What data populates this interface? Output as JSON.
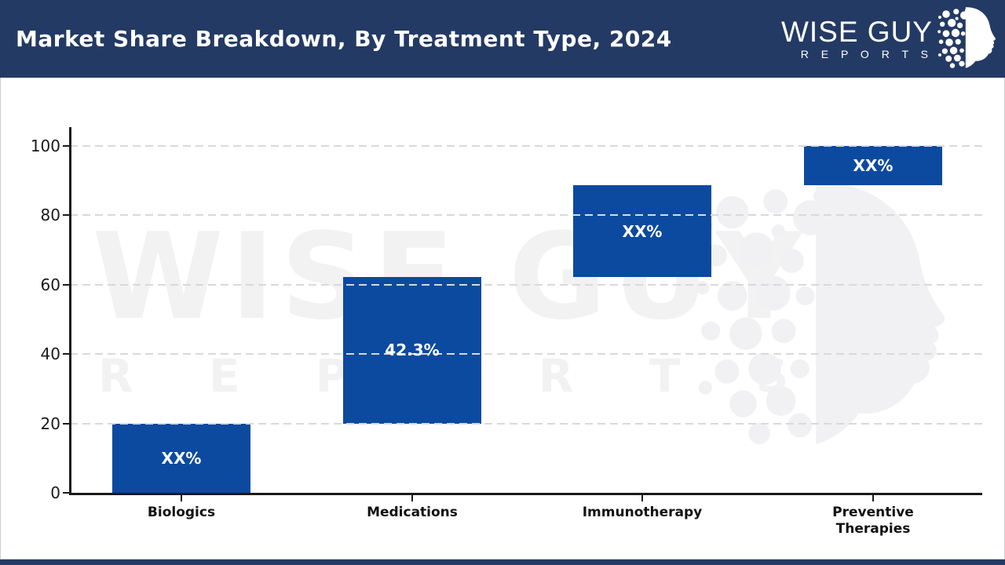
{
  "header": {
    "title": "Market Share Breakdown, By Treatment Type, 2024",
    "brand": {
      "line1": "WISE GUY",
      "line2": "R E P O R T S"
    }
  },
  "watermark": {
    "line1": "WISE GUY",
    "line2": "R E P O R T S"
  },
  "chart_data": {
    "type": "bar",
    "variant": "waterfall",
    "title": "Market Share Breakdown, By Treatment Type, 2024",
    "categories": [
      "Biologics",
      "Medications",
      "Immunotherapy",
      "Preventive Therapies"
    ],
    "segments": [
      {
        "category": "Biologics",
        "start": 0,
        "end": 20,
        "label": "XX%"
      },
      {
        "category": "Medications",
        "start": 20,
        "end": 62.3,
        "label": "42.3%"
      },
      {
        "category": "Immunotherapy",
        "start": 62.3,
        "end": 88.6,
        "label": "XX%"
      },
      {
        "category": "Preventive Therapies",
        "start": 88.6,
        "end": 100,
        "label": "XX%"
      }
    ],
    "xlabel": "",
    "ylabel": "",
    "ylim": [
      0,
      100
    ],
    "y_ticks": [
      0,
      20,
      40,
      60,
      80,
      100
    ],
    "grid": "horizontal dashed, drawn over bars",
    "legend": "none",
    "bar_color": "#0c4aa0",
    "bar_label_color": "#ffffff"
  }
}
